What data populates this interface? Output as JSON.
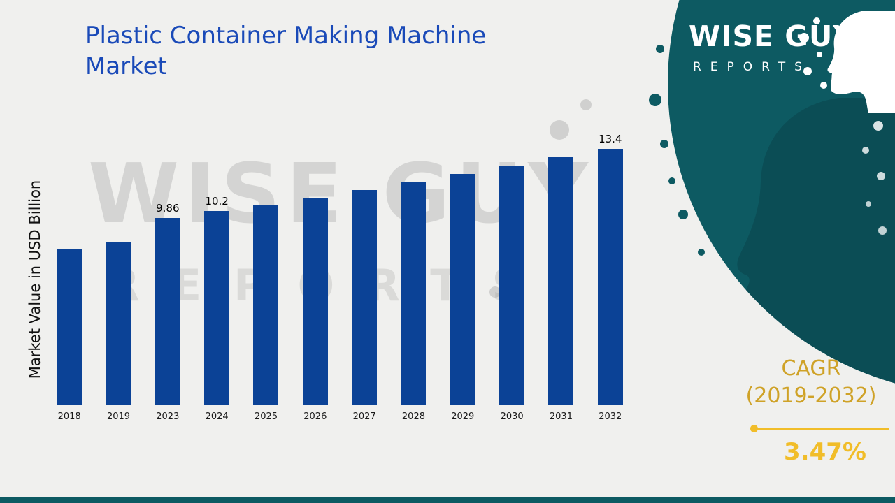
{
  "title": {
    "line1": "Plastic Container Making Machine",
    "line2": "Market"
  },
  "logo": {
    "brand": "WISE GUY",
    "sub": "REPORTS"
  },
  "watermark": {
    "line1": "WISE GUY",
    "line2": "REPORTS"
  },
  "chart_data": {
    "type": "bar",
    "title": "Plastic Container Making Machine Market",
    "xlabel": "",
    "ylabel": "Market Value in USD Billion",
    "categories": [
      "2018",
      "2019",
      "2023",
      "2024",
      "2025",
      "2026",
      "2027",
      "2028",
      "2029",
      "2030",
      "2031",
      "2032"
    ],
    "values": [
      8.3,
      8.6,
      9.86,
      10.2,
      10.55,
      10.9,
      11.3,
      11.7,
      12.1,
      12.5,
      12.95,
      13.4
    ],
    "value_labels_shown": {
      "2023": "9.86",
      "2024": "10.2",
      "2032": "13.4"
    },
    "unit": "USD Billion",
    "legend": false,
    "grid": false,
    "bar_color": "#0b4296"
  },
  "cagr": {
    "label": "CAGR",
    "range": "(2019-2032)",
    "value": "3.47%"
  },
  "colors": {
    "teal": "#0d5a62",
    "teal_dark": "#0b4d55",
    "bar_blue": "#0b4296",
    "title_blue": "#1a4ab8",
    "gold": "#cfa227",
    "gold_bright": "#f1bd29",
    "background": "#f0f0ee"
  }
}
